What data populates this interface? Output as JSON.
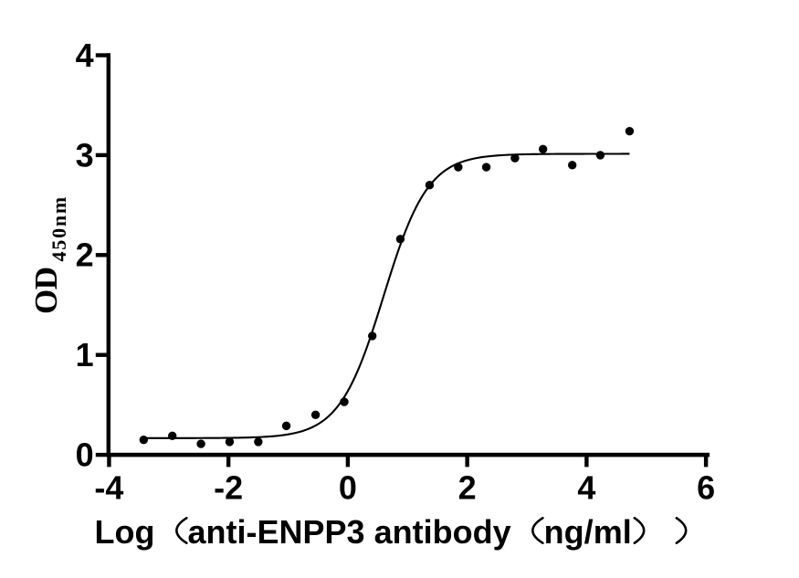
{
  "chart_data": {
    "type": "scatter",
    "title": "",
    "xlabel": "Log（anti-ENPP3 antibody（ng/ml） ）",
    "ylabel_main": "OD",
    "ylabel_sub": "450nm",
    "x_ticks": [
      -4,
      -2,
      0,
      2,
      4,
      6
    ],
    "y_ticks": [
      0,
      1,
      2,
      3,
      4
    ],
    "xlim": [
      -4,
      6.1
    ],
    "ylim": [
      0,
      4
    ],
    "grid": false,
    "legend": "none",
    "axis_color": "#000000",
    "background_color": "#ffffff",
    "series": [
      {
        "name": "ELISA data points",
        "marker": "filled-circle",
        "color": "#000000",
        "points": [
          {
            "x": -3.42,
            "y": 0.15
          },
          {
            "x": -2.94,
            "y": 0.19
          },
          {
            "x": -2.46,
            "y": 0.11
          },
          {
            "x": -1.98,
            "y": 0.13
          },
          {
            "x": -1.5,
            "y": 0.13
          },
          {
            "x": -1.03,
            "y": 0.29
          },
          {
            "x": -0.54,
            "y": 0.4
          },
          {
            "x": -0.06,
            "y": 0.53
          },
          {
            "x": 0.41,
            "y": 1.19
          },
          {
            "x": 0.88,
            "y": 2.16
          },
          {
            "x": 1.37,
            "y": 2.7
          },
          {
            "x": 1.85,
            "y": 2.88
          },
          {
            "x": 2.32,
            "y": 2.88
          },
          {
            "x": 2.8,
            "y": 2.97
          },
          {
            "x": 3.27,
            "y": 3.06
          },
          {
            "x": 3.76,
            "y": 2.9
          },
          {
            "x": 4.23,
            "y": 3.0
          },
          {
            "x": 4.72,
            "y": 3.24
          }
        ]
      },
      {
        "name": "4PL fitted curve",
        "marker": "none",
        "color": "#000000",
        "fit": {
          "model": "4PL",
          "bottom": 0.167,
          "top": 3.013,
          "logEC50": 0.6,
          "hillslope": 1.17,
          "x_start": -3.42,
          "x_end": 4.72
        }
      }
    ]
  }
}
